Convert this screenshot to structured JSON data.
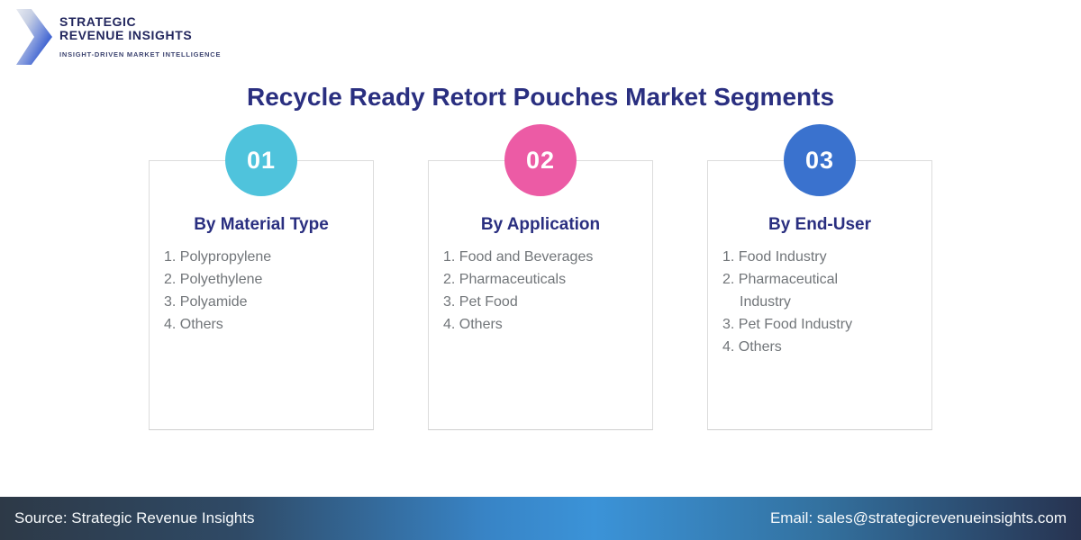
{
  "brand": {
    "name_line1": "STRATEGIC",
    "name_line2": "REVENUE INSIGHTS",
    "tagline": "INSIGHT-DRIVEN MARKET INTELLIGENCE"
  },
  "page": {
    "title": "Recycle Ready Retort Pouches Market Segments"
  },
  "colors": {
    "title_navy": "#2a2f80",
    "list_gray": "#717579",
    "card_border": "#dcdcdc",
    "footer_gradient_left": "#2d3947",
    "footer_gradient_mid": "#3b93d8",
    "footer_gradient_right": "#273350",
    "logo_gradient_start": "#e7eaf1",
    "logo_gradient_end": "#2b4cc0"
  },
  "cards": [
    {
      "number": "01",
      "accent": "#4fc3dc",
      "heading": "By Material Type",
      "items": [
        "1. Polypropylene",
        "2. Polyethylene",
        "3. Polyamide",
        "4. Others"
      ]
    },
    {
      "number": "02",
      "accent": "#ec5ba5",
      "heading": "By Application",
      "items": [
        "1. Food and Beverages",
        "2. Pharmaceuticals",
        "3. Pet Food",
        "4. Others"
      ]
    },
    {
      "number": "03",
      "accent": "#3a72ce",
      "heading": "By End-User",
      "items": [
        "1. Food Industry",
        "2. Pharmaceutical Industry",
        "3. Pet Food Industry",
        "4. Others"
      ]
    }
  ],
  "footer": {
    "source": "Source: Strategic Revenue Insights",
    "email": "Email: sales@strategicrevenueinsights.com"
  }
}
